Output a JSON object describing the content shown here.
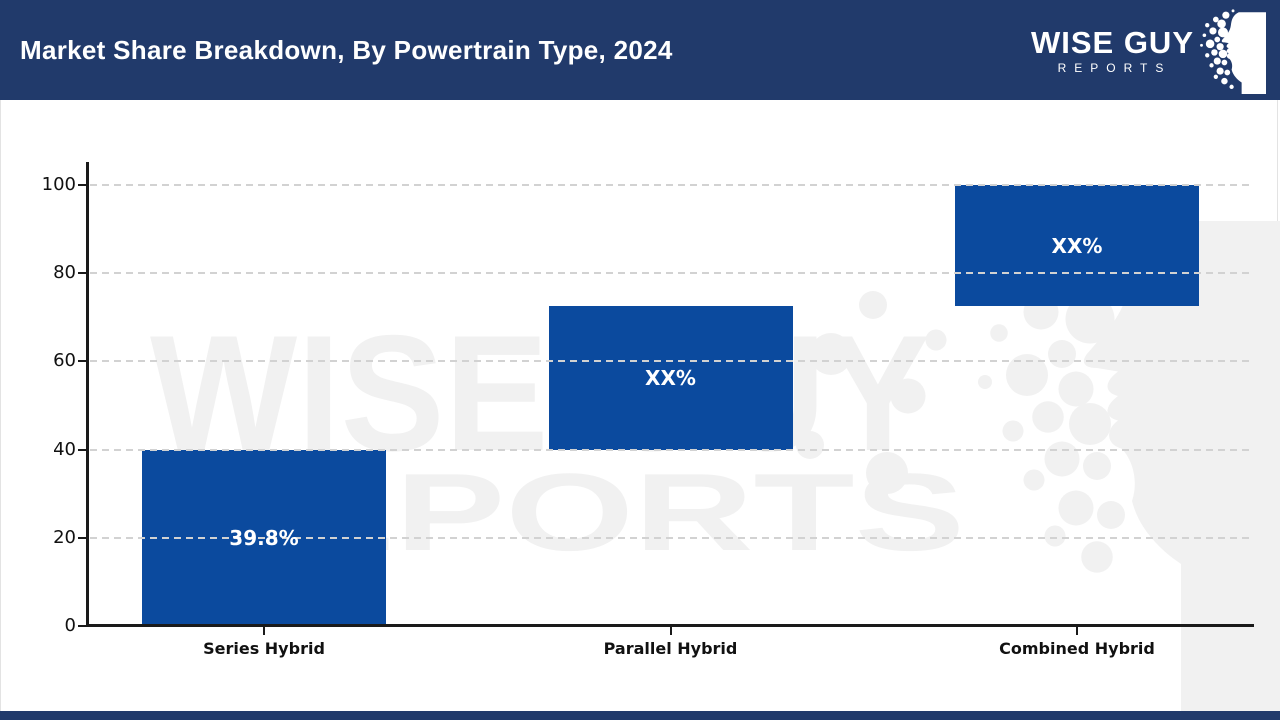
{
  "header": {
    "title": "Market Share Breakdown, By Powertrain Type, 2024",
    "logo": {
      "wordmark": "WISE GUY",
      "subtitle": "REPORTS"
    }
  },
  "watermark": {
    "line1": "WISE GUY",
    "line2": "REPORTS"
  },
  "chart_data": {
    "type": "bar",
    "variant": "waterfall",
    "title": "Market Share Breakdown, By Powertrain Type, 2024",
    "categories": [
      "Series Hybrid",
      "Parallel Hybrid",
      "Combined Hybrid"
    ],
    "segments": [
      {
        "category": "Series Hybrid",
        "start": 0,
        "end": 39.8,
        "label": "39.8%"
      },
      {
        "category": "Parallel Hybrid",
        "start": 39.8,
        "end": 72.5,
        "label": "XX%"
      },
      {
        "category": "Combined Hybrid",
        "start": 72.5,
        "end": 100,
        "label": "XX%"
      }
    ],
    "xlabel": "",
    "ylabel": "",
    "ylim": [
      0,
      105
    ],
    "yticks": [
      0,
      20,
      40,
      60,
      80,
      100
    ],
    "grid": "horizontal-dashed-above-bars",
    "legend": "none",
    "bar_color": "#0b4a9e",
    "value_label_color": "#ffffff"
  },
  "colors": {
    "header_bg": "#213a6b",
    "bar": "#0b4a9e",
    "grid": "#d2d2d2",
    "axis": "#1a1a1a",
    "watermark": "#f1f1f1"
  }
}
